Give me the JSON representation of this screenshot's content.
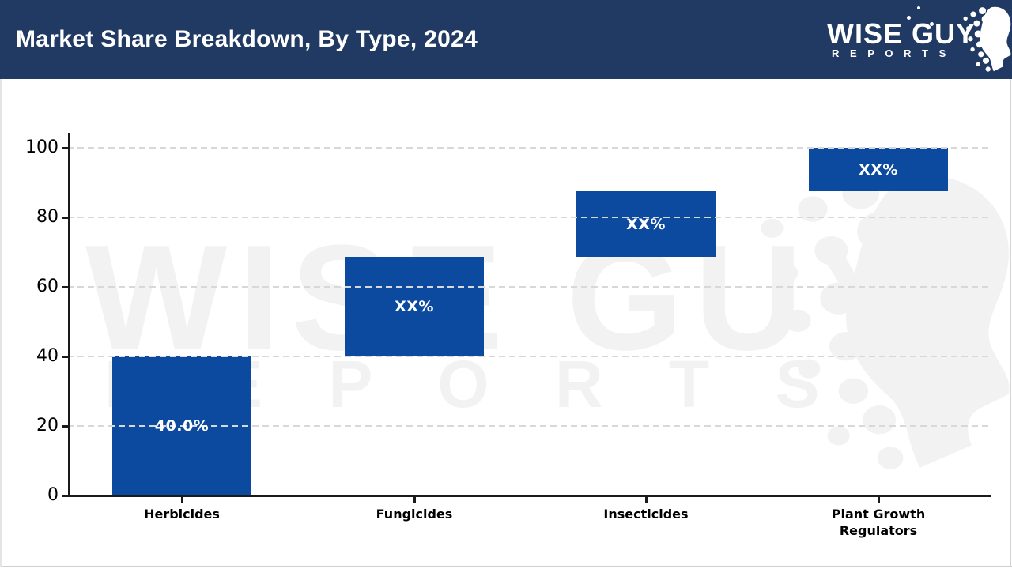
{
  "header": {
    "title": "Market Share Breakdown, By Type, 2024",
    "logo": {
      "line1": "WISE GUY",
      "line2": "R E P O R T S"
    }
  },
  "watermark": {
    "line1": "WISE GUY",
    "line2": "R E P O R T S"
  },
  "chart_data": {
    "type": "bar",
    "variant": "floating-segment-waterfall",
    "title": "Market Share Breakdown, By Type, 2024",
    "categories": [
      "Herbicides",
      "Fungicides",
      "Insecticides",
      "Plant Growth Regulators"
    ],
    "bars": [
      {
        "category": "Herbicides",
        "start": 0,
        "end": 40,
        "label": "40.0%"
      },
      {
        "category": "Fungicides",
        "start": 40,
        "end": 68.6,
        "label": "XX%"
      },
      {
        "category": "Insecticides",
        "start": 68.6,
        "end": 87.5,
        "label": "XX%"
      },
      {
        "category": "Plant Growth Regulators",
        "start": 87.5,
        "end": 100,
        "label": "XX%"
      }
    ],
    "yticks": [
      0,
      20,
      40,
      60,
      80,
      100
    ],
    "ylim": [
      0,
      104
    ],
    "xlabel": "",
    "ylabel": "",
    "grid": "horizontal-dashed",
    "legend": "none",
    "bar_color": "#0b4a9f",
    "bar_label_color": "#ffffff"
  },
  "colors": {
    "header_bg": "#213a63",
    "bar": "#0b4a9f",
    "grid": "#d8d8d8",
    "axis": "#1a1a1a",
    "watermark": "#f2f2f2"
  }
}
